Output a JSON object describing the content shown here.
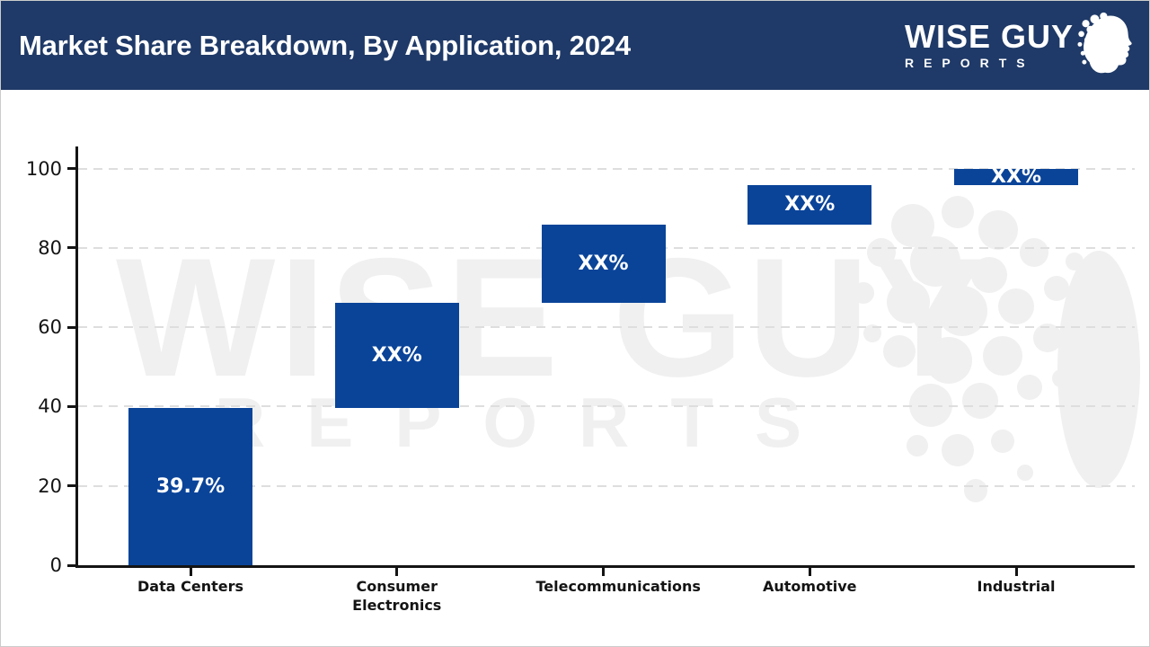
{
  "header": {
    "title": "Market Share Breakdown, By Application, 2024",
    "logo": {
      "line1": "WISE GUY",
      "line2": "REPORTS"
    }
  },
  "watermark": {
    "line1": "WISE GUY",
    "line2": "REPORTS"
  },
  "chart_data": {
    "type": "bar",
    "subtype": "waterfall",
    "title": "Market Share Breakdown, By Application, 2024",
    "categories": [
      "Data Centers",
      "Consumer Electronics",
      "Telecommunications",
      "Automotive",
      "Industrial"
    ],
    "segments": [
      {
        "category": "Data Centers",
        "start": 0,
        "end": 39.7,
        "label": "39.7%"
      },
      {
        "category": "Consumer Electronics",
        "start": 39.7,
        "end": 66.1,
        "label": "XX%"
      },
      {
        "category": "Telecommunications",
        "start": 66.1,
        "end": 85.8,
        "label": "XX%"
      },
      {
        "category": "Automotive",
        "start": 85.8,
        "end": 95.9,
        "label": "XX%"
      },
      {
        "category": "Industrial",
        "start": 95.9,
        "end": 100,
        "label": "XX%"
      }
    ],
    "yticks": [
      0,
      20,
      40,
      60,
      80,
      100
    ],
    "ylim": [
      0,
      105
    ],
    "xlabel": "",
    "ylabel": "",
    "grid": "horizontal-dashed",
    "legend": null,
    "colors": {
      "bar": "#0a4499",
      "grid": "#dedede",
      "axis": "#141414",
      "bar_label": "#ffffff",
      "header_bg": "#1f3a68",
      "watermark": "#f0f0f0",
      "page_border": "#cccccc"
    }
  }
}
